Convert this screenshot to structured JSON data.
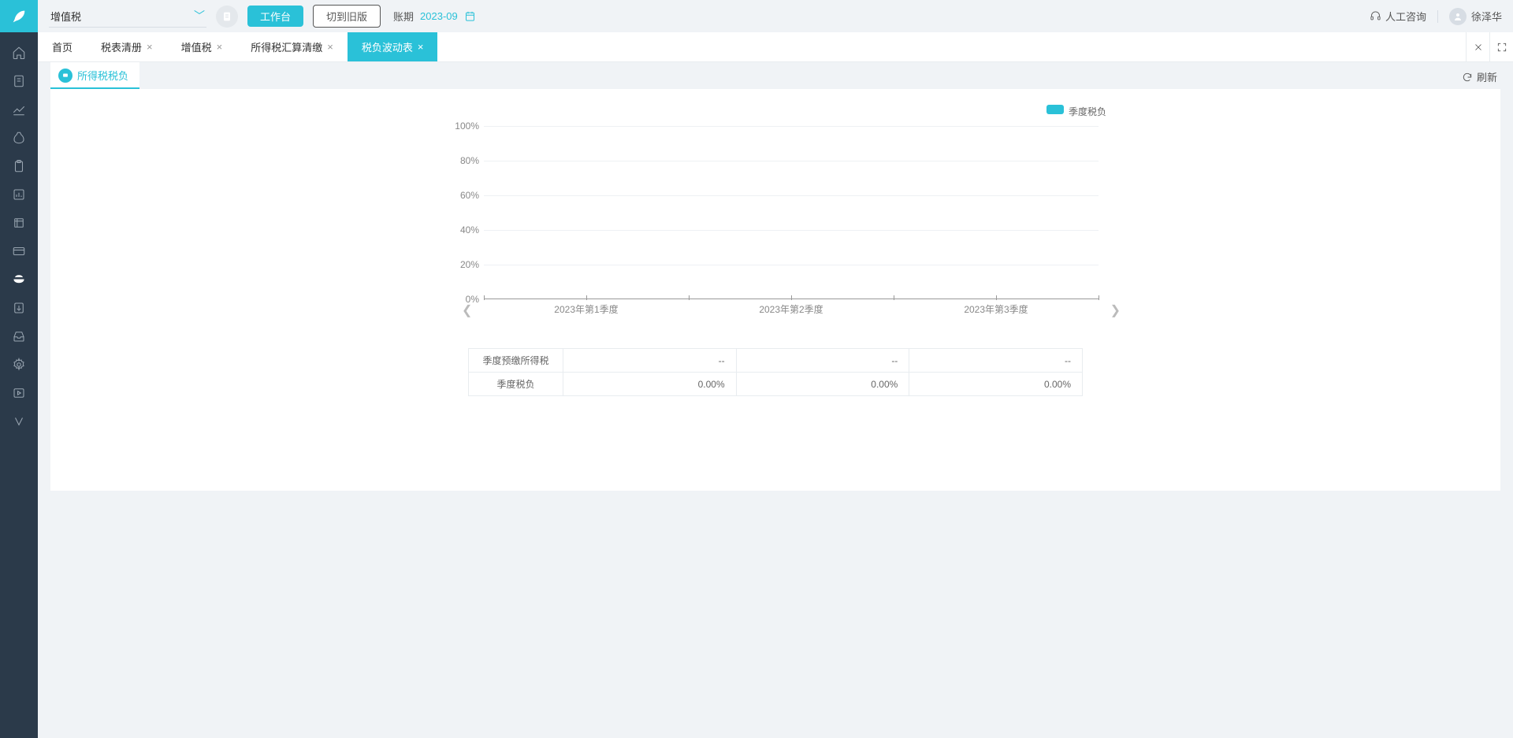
{
  "header": {
    "selector_label": "增值税",
    "workbench_btn": "工作台",
    "switch_old_btn": "切到旧版",
    "period_label": "账期",
    "period_value": "2023-09",
    "consult_label": "人工咨询",
    "user_name": "徐泽华"
  },
  "tabs": [
    {
      "label": "首页",
      "closable": false,
      "active": false
    },
    {
      "label": "税表清册",
      "closable": true,
      "active": false
    },
    {
      "label": "增值税",
      "closable": true,
      "active": false
    },
    {
      "label": "所得税汇算清缴",
      "closable": true,
      "active": false
    },
    {
      "label": "税负波动表",
      "closable": true,
      "active": true
    }
  ],
  "subtab": {
    "label": "所得税税负"
  },
  "refresh_label": "刷新",
  "chart": {
    "type": "line",
    "legend_label": "季度税负",
    "legend_color": "#2ac1d8",
    "ylim": [
      0,
      100
    ],
    "ytick_step": 20,
    "y_suffix": "%",
    "x_categories": [
      "2023年第1季度",
      "2023年第2季度",
      "2023年第3季度"
    ],
    "series": [
      {
        "name": "季度税负",
        "color": "#2ac1d8",
        "values": [
          0,
          0,
          0
        ]
      }
    ],
    "grid_color": "#eef1f4",
    "axis_color": "#999999",
    "background_color": "#ffffff",
    "label_fontsize": 12
  },
  "table": {
    "row_headers": [
      "季度预缴所得税",
      "季度税负"
    ],
    "columns": [
      "2023年第1季度",
      "2023年第2季度",
      "2023年第3季度"
    ],
    "rows": [
      [
        "--",
        "--",
        "--"
      ],
      [
        "0.00%",
        "0.00%",
        "0.00%"
      ]
    ]
  },
  "colors": {
    "accent": "#2ac1d8",
    "sidebar_bg": "#2b3a4a",
    "page_bg": "#f0f3f6",
    "border": "#e8ecef"
  }
}
